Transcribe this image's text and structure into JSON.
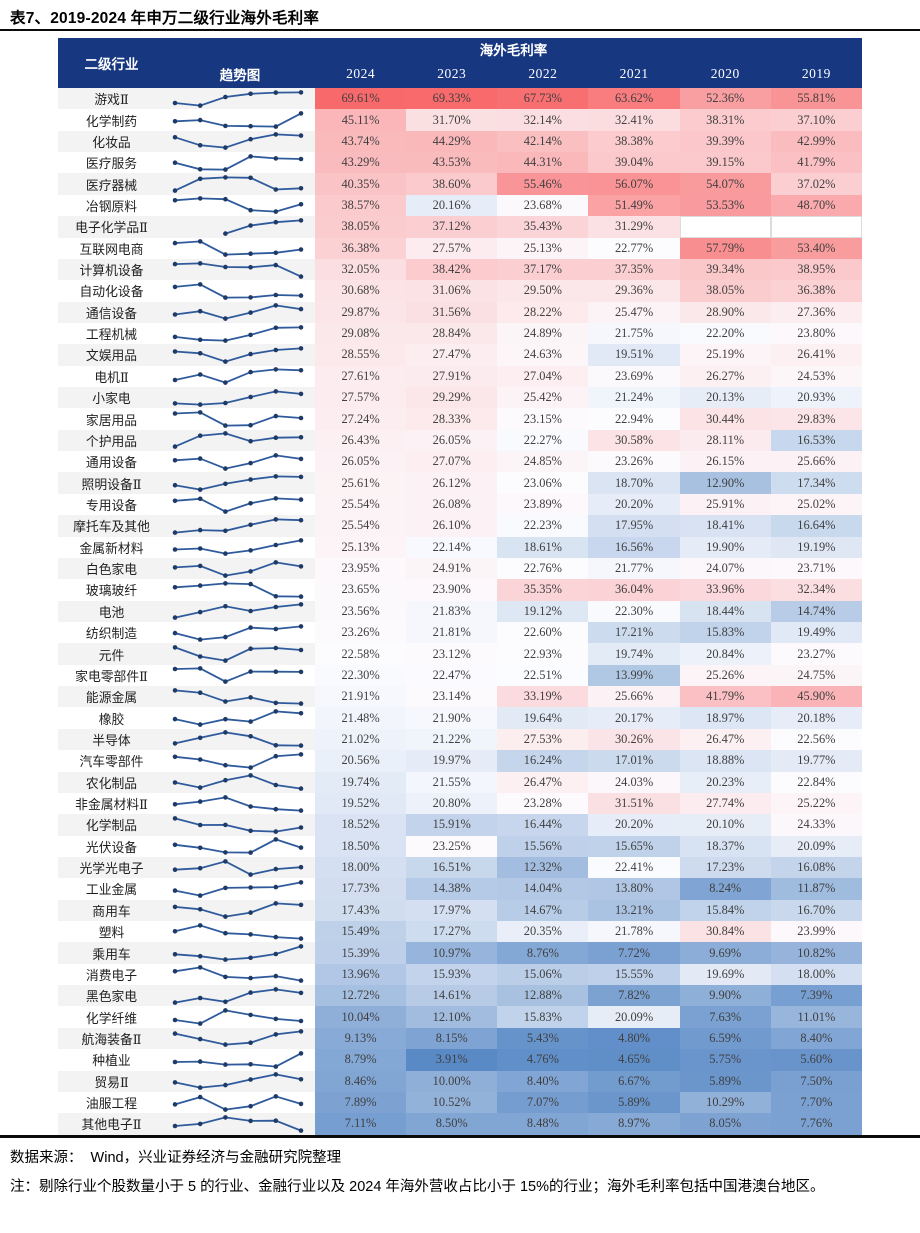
{
  "title": "表7、2019-2024 年申万二级行业海外毛利率",
  "table": {
    "col_industry": "二级行业",
    "col_trend": "趋势图",
    "group_header": "海外毛利率",
    "years": [
      "2024",
      "2023",
      "2022",
      "2021",
      "2020",
      "2019"
    ],
    "industries": [
      {
        "name": "游戏Ⅱ",
        "values": [
          69.61,
          69.33,
          67.73,
          63.62,
          52.36,
          55.81
        ]
      },
      {
        "name": "化学制药",
        "values": [
          45.11,
          31.7,
          32.14,
          32.41,
          38.31,
          37.1
        ]
      },
      {
        "name": "化妆品",
        "values": [
          43.74,
          44.29,
          42.14,
          38.38,
          39.39,
          42.99
        ]
      },
      {
        "name": "医疗服务",
        "values": [
          43.29,
          43.53,
          44.31,
          39.04,
          39.15,
          41.79
        ]
      },
      {
        "name": "医疗器械",
        "values": [
          40.35,
          38.6,
          55.46,
          56.07,
          54.07,
          37.02
        ]
      },
      {
        "name": "冶钢原料",
        "values": [
          38.57,
          20.16,
          23.68,
          51.49,
          53.53,
          48.7
        ]
      },
      {
        "name": "电子化学品Ⅱ",
        "values": [
          38.05,
          37.12,
          35.43,
          31.29,
          null,
          null
        ]
      },
      {
        "name": "互联网电商",
        "values": [
          36.38,
          27.57,
          25.13,
          22.77,
          57.79,
          53.4
        ]
      },
      {
        "name": "计算机设备",
        "values": [
          32.05,
          38.42,
          37.17,
          37.35,
          39.34,
          38.95
        ]
      },
      {
        "name": "自动化设备",
        "values": [
          30.68,
          31.06,
          29.5,
          29.36,
          38.05,
          36.38
        ]
      },
      {
        "name": "通信设备",
        "values": [
          29.87,
          31.56,
          28.22,
          25.47,
          28.9,
          27.36
        ]
      },
      {
        "name": "工程机械",
        "values": [
          29.08,
          28.84,
          24.89,
          21.75,
          22.2,
          23.8
        ]
      },
      {
        "name": "文娱用品",
        "values": [
          28.55,
          27.47,
          24.63,
          19.51,
          25.19,
          26.41
        ]
      },
      {
        "name": "电机Ⅱ",
        "values": [
          27.61,
          27.91,
          27.04,
          23.69,
          26.27,
          24.53
        ]
      },
      {
        "name": "小家电",
        "values": [
          27.57,
          29.29,
          25.42,
          21.24,
          20.13,
          20.93
        ]
      },
      {
        "name": "家居用品",
        "values": [
          27.24,
          28.33,
          23.15,
          22.94,
          30.44,
          29.83
        ]
      },
      {
        "name": "个护用品",
        "values": [
          26.43,
          26.05,
          22.27,
          30.58,
          28.11,
          16.53
        ]
      },
      {
        "name": "通用设备",
        "values": [
          26.05,
          27.07,
          24.85,
          23.26,
          26.15,
          25.66
        ]
      },
      {
        "name": "照明设备Ⅱ",
        "values": [
          25.61,
          26.12,
          23.06,
          18.7,
          12.9,
          17.34
        ]
      },
      {
        "name": "专用设备",
        "values": [
          25.54,
          26.08,
          23.89,
          20.2,
          25.91,
          25.02
        ]
      },
      {
        "name": "摩托车及其他",
        "values": [
          25.54,
          26.1,
          22.23,
          17.95,
          18.41,
          16.64
        ]
      },
      {
        "name": "金属新材料",
        "values": [
          25.13,
          22.14,
          18.61,
          16.56,
          19.9,
          19.19
        ]
      },
      {
        "name": "白色家电",
        "values": [
          23.95,
          24.91,
          22.76,
          21.77,
          24.07,
          23.71
        ]
      },
      {
        "name": "玻璃玻纤",
        "values": [
          23.65,
          23.9,
          35.35,
          36.04,
          33.96,
          32.34
        ]
      },
      {
        "name": "电池",
        "values": [
          23.56,
          21.83,
          19.12,
          22.3,
          18.44,
          14.74
        ]
      },
      {
        "name": "纺织制造",
        "values": [
          23.26,
          21.81,
          22.6,
          17.21,
          15.83,
          19.49
        ]
      },
      {
        "name": "元件",
        "values": [
          22.58,
          23.12,
          22.93,
          19.74,
          20.84,
          23.27
        ]
      },
      {
        "name": "家电零部件Ⅱ",
        "values": [
          22.3,
          22.47,
          22.51,
          13.99,
          25.26,
          24.75
        ]
      },
      {
        "name": "能源金属",
        "values": [
          21.91,
          23.14,
          33.19,
          25.66,
          41.79,
          45.9
        ]
      },
      {
        "name": "橡胶",
        "values": [
          21.48,
          21.9,
          19.64,
          20.17,
          18.97,
          20.18
        ]
      },
      {
        "name": "半导体",
        "values": [
          21.02,
          21.22,
          27.53,
          30.26,
          26.47,
          22.56
        ]
      },
      {
        "name": "汽车零部件",
        "values": [
          20.56,
          19.97,
          16.24,
          17.01,
          18.88,
          19.77
        ]
      },
      {
        "name": "农化制品",
        "values": [
          19.74,
          21.55,
          26.47,
          24.03,
          20.23,
          22.84
        ]
      },
      {
        "name": "非金属材料Ⅱ",
        "values": [
          19.52,
          20.8,
          23.28,
          31.51,
          27.74,
          25.22
        ]
      },
      {
        "name": "化学制品",
        "values": [
          18.52,
          15.91,
          16.44,
          20.2,
          20.1,
          24.33
        ]
      },
      {
        "name": "光伏设备",
        "values": [
          18.5,
          23.25,
          15.56,
          15.65,
          18.37,
          20.09
        ]
      },
      {
        "name": "光学光电子",
        "values": [
          18.0,
          16.51,
          12.32,
          22.41,
          17.23,
          16.08
        ]
      },
      {
        "name": "工业金属",
        "values": [
          17.73,
          14.38,
          14.04,
          13.8,
          8.24,
          11.87
        ]
      },
      {
        "name": "商用车",
        "values": [
          17.43,
          17.97,
          14.67,
          13.21,
          15.84,
          16.7
        ]
      },
      {
        "name": "塑料",
        "values": [
          15.49,
          17.27,
          20.35,
          21.78,
          30.84,
          23.99
        ]
      },
      {
        "name": "乘用车",
        "values": [
          15.39,
          10.97,
          8.76,
          7.72,
          9.69,
          10.82
        ]
      },
      {
        "name": "消费电子",
        "values": [
          13.96,
          15.93,
          15.06,
          15.55,
          19.69,
          18.0
        ]
      },
      {
        "name": "黑色家电",
        "values": [
          12.72,
          14.61,
          12.88,
          7.82,
          9.9,
          7.39
        ]
      },
      {
        "name": "化学纤维",
        "values": [
          10.04,
          12.1,
          15.83,
          20.09,
          7.63,
          11.01
        ]
      },
      {
        "name": "航海装备Ⅱ",
        "values": [
          9.13,
          8.15,
          5.43,
          4.8,
          6.59,
          8.4
        ]
      },
      {
        "name": "种植业",
        "values": [
          8.79,
          3.91,
          4.76,
          4.65,
          5.75,
          5.6
        ]
      },
      {
        "name": "贸易Ⅱ",
        "values": [
          8.46,
          10.0,
          8.4,
          6.67,
          5.89,
          7.5
        ]
      },
      {
        "name": "油服工程",
        "values": [
          7.89,
          10.52,
          7.07,
          5.89,
          10.29,
          7.7
        ]
      },
      {
        "name": "其他电子Ⅱ",
        "values": [
          7.11,
          8.5,
          8.48,
          8.97,
          8.05,
          7.76
        ]
      }
    ]
  },
  "footer": {
    "source": "数据来源：  Wind，兴业证券经济与金融研究院整理",
    "note": "注：剔除行业个股数量小于 5 的行业、金融行业以及 2024 年海外营收占比小于 15%的行业；海外毛利率包括中国港澳台地区。"
  },
  "colors": {
    "header_bg": "#173781",
    "stripe": "#F3F3F3",
    "heat_max": "#F8696B",
    "heat_mid": "#FCFCFF",
    "heat_min": "#5A8AC6",
    "spark_line": "#2F5B9D",
    "spark_marker": "#1E3A66"
  }
}
